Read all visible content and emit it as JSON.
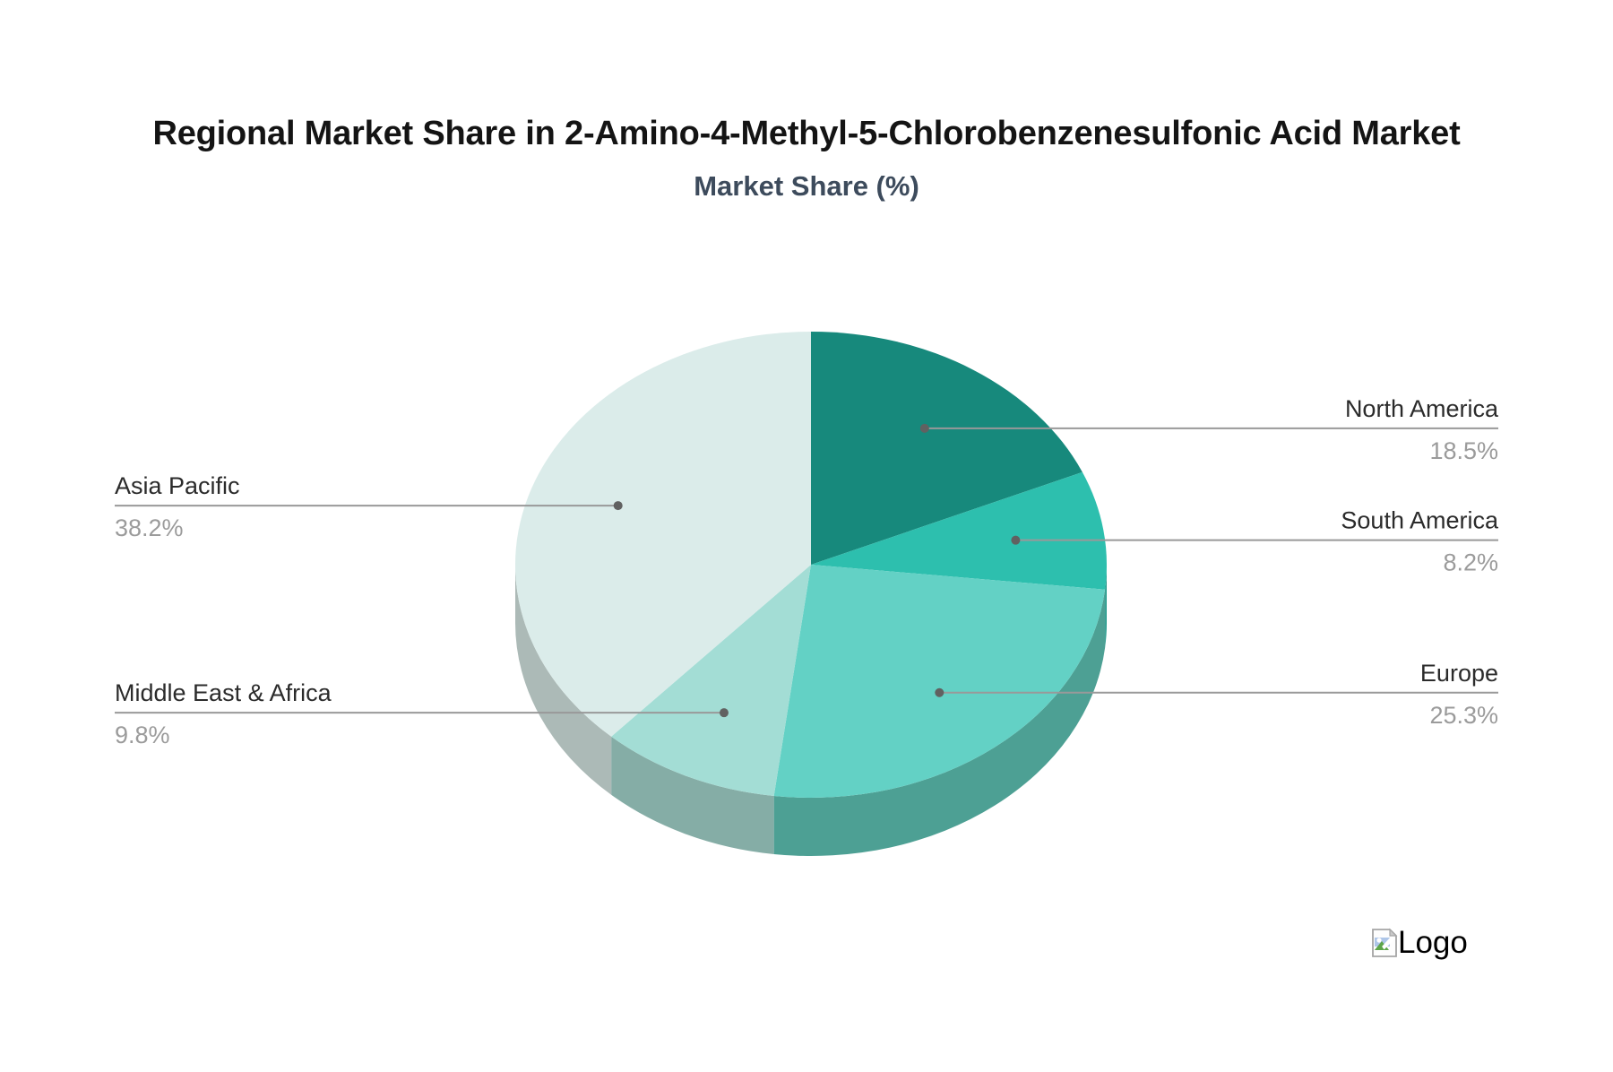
{
  "header": {
    "title": "Regional Market Share in 2-Amino-4-Methyl-5-Chlorobenzenesulfonic Acid Market",
    "subtitle": "Market Share (%)",
    "title_color": "#141414",
    "subtitle_color": "#3d4b5c"
  },
  "chart_data": {
    "type": "pie",
    "title": "Regional Market Share in 2-Amino-4-Methyl-5-Chlorobenzenesulfonic Acid Market",
    "subtitle": "Market Share (%)",
    "unit": "%",
    "style": "3d-pie",
    "start_angle": "12-o'clock",
    "direction": "clockwise",
    "legend_position": "none (leader-line labels)",
    "slices": [
      {
        "label": "North America",
        "value": 18.5,
        "display": "18.5%",
        "color": "#17897c",
        "side_color": "#126e64",
        "label_side": "right"
      },
      {
        "label": "South America",
        "value": 8.2,
        "display": "8.2%",
        "color": "#2dbfae",
        "side_color": "#259a8c",
        "label_side": "right"
      },
      {
        "label": "Europe",
        "value": 25.3,
        "display": "25.3%",
        "color": "#63d1c5",
        "side_color": "#4da094",
        "label_side": "right"
      },
      {
        "label": "Middle East & Africa",
        "value": 9.8,
        "display": "9.8%",
        "color": "#a3ddd5",
        "side_color": "#85ada6",
        "label_side": "left"
      },
      {
        "label": "Asia Pacific",
        "value": 38.2,
        "display": "38.2%",
        "color": "#dbecea",
        "side_color": "#acbab7",
        "label_side": "left"
      }
    ],
    "label_style": {
      "name_color": "#2b2b2b",
      "value_color": "#9b9b9b",
      "line_color": "#999999",
      "dot_color": "#616161"
    }
  },
  "footer": {
    "logo_alt": "Logo"
  }
}
